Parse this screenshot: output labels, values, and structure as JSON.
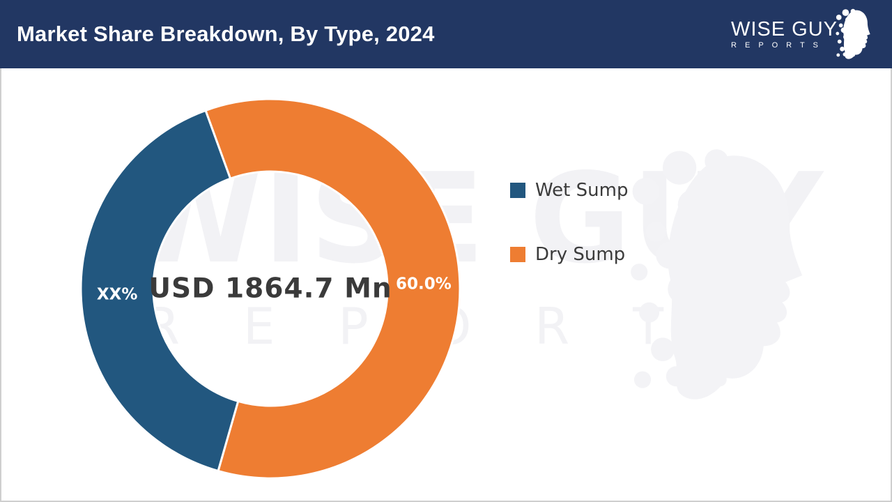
{
  "header": {
    "title": "Market Share Breakdown, By Type, 2024",
    "logo": {
      "name": "WISE GUY",
      "tagline": "R E P O R T S"
    }
  },
  "watermark": {
    "line1": "WISE GUY",
    "line2": "R E P O R T S"
  },
  "chart_data": {
    "type": "pie",
    "donut": true,
    "title": "Market Share Breakdown, By Type, 2024",
    "categories": [
      "Wet Sump",
      "Dry Sump"
    ],
    "values": [
      40,
      60
    ],
    "slice_labels": [
      "XX%",
      "60.0%"
    ],
    "colors": [
      "#22577f",
      "#ee7d32"
    ],
    "center_label": "USD 1864.7 Mn",
    "start_angle_deg": -20,
    "draw_order": [
      "Dry Sump",
      "Wet Sump"
    ],
    "legend_position": "right"
  },
  "legend": {
    "items": [
      {
        "label": "Wet Sump",
        "color": "#22577f"
      },
      {
        "label": "Dry Sump",
        "color": "#ee7d32"
      }
    ]
  },
  "colors": {
    "header_bg": "#223763",
    "title_text": "#ffffff",
    "center_text": "#3a3a3a",
    "watermark": "#f2f2f5",
    "border": "#cfcfcf",
    "slice_label_text": "#ffffff",
    "legend_text": "#3b3b3b"
  }
}
